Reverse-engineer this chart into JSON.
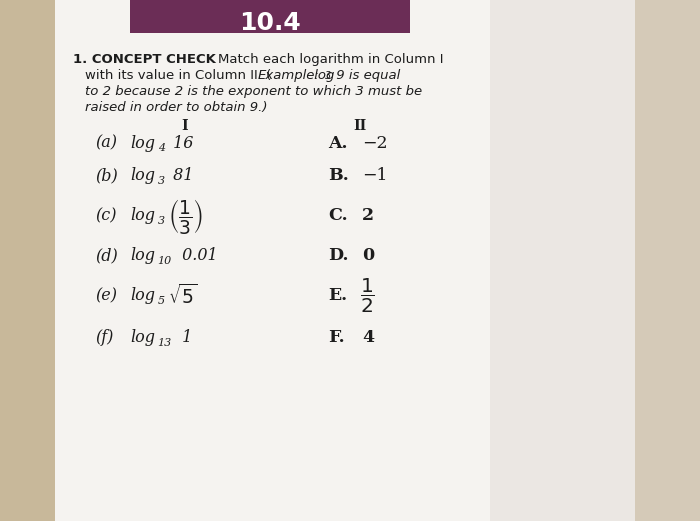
{
  "bg_desk_color": "#c8b89a",
  "page_color": "#f5f3f0",
  "page_right_color": "#e8e4de",
  "header_bar_color": "#6b2d56",
  "header_text": "10.4",
  "concept_check_bold": "1. CONCEPT CHECK",
  "line1_rest": "Match each logarithm in Column I",
  "line2": "with its value in Column II. (",
  "line2_example": "Example:",
  "line2_log": " log",
  "line2_sub": "3",
  "line2_end": " 9 is equal",
  "line3": "to 2 because 2 is the exponent to which 3 must be",
  "line4": "raised in order to obtain 9.)",
  "col1_header": "I",
  "col2_header": "II",
  "text_color": "#1c1c1c",
  "rows": [
    {
      "label": "a",
      "log_base": "4",
      "log_arg": "16",
      "ans_letter": "A.",
      "ans_val": "−2",
      "type": "normal"
    },
    {
      "label": "b",
      "log_base": "3",
      "log_arg": "81",
      "ans_letter": "B.",
      "ans_val": "−1",
      "type": "normal"
    },
    {
      "label": "c",
      "log_base": "3",
      "log_arg": "",
      "ans_letter": "C.",
      "ans_val": "2",
      "type": "fraction"
    },
    {
      "label": "d",
      "log_base": "10",
      "log_arg": "0.01",
      "ans_letter": "D.",
      "ans_val": "0",
      "type": "normal"
    },
    {
      "label": "e",
      "log_base": "5",
      "log_arg": "",
      "ans_letter": "E.",
      "ans_val": "",
      "type": "sqrt"
    },
    {
      "label": "f",
      "log_base": "13",
      "log_arg": "1",
      "ans_letter": "F.",
      "ans_val": "4",
      "type": "normal"
    }
  ]
}
